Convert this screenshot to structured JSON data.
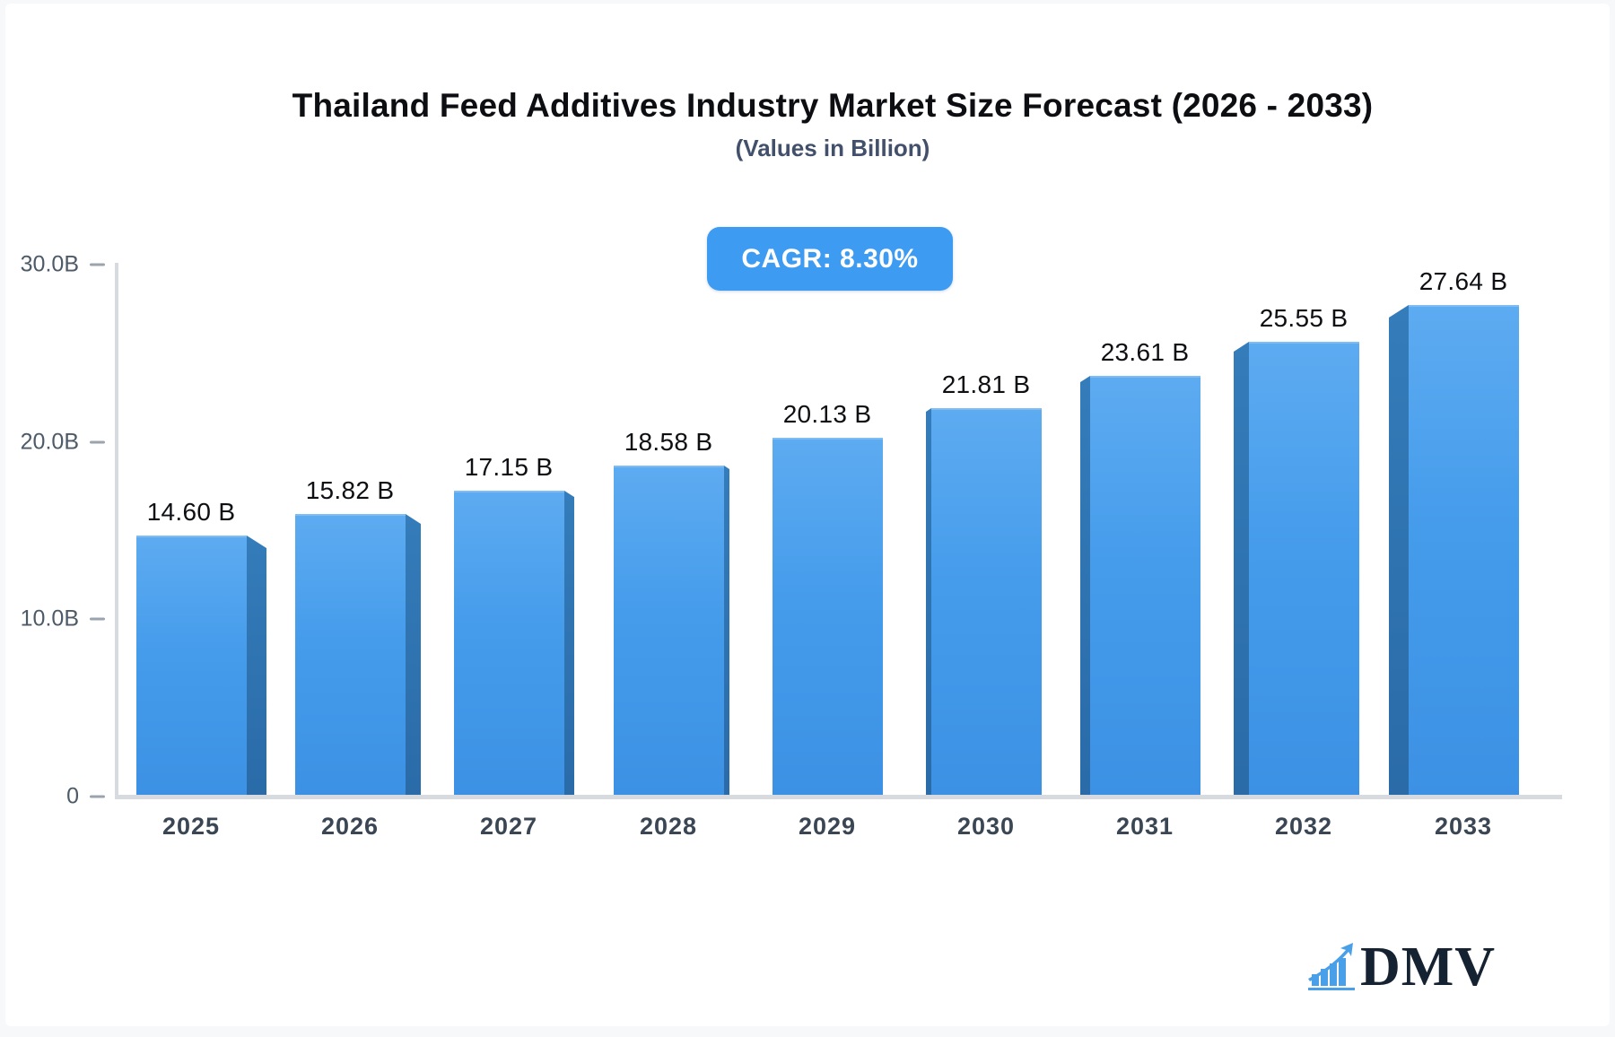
{
  "header": {
    "title": "Thailand Feed Additives Industry Market Size Forecast (2026 - 2033)",
    "subtitle": "(Values in Billion)",
    "cagr_label": "CAGR: 8.30%"
  },
  "chart_data": {
    "type": "bar",
    "style": "3d-perspective-bars",
    "categories": [
      "2025",
      "2026",
      "2027",
      "2028",
      "2029",
      "2030",
      "2031",
      "2032",
      "2033"
    ],
    "values": [
      14.6,
      15.82,
      17.15,
      18.58,
      20.13,
      21.81,
      23.61,
      25.55,
      27.64
    ],
    "value_labels": [
      "14.60 B",
      "15.82 B",
      "17.15 B",
      "18.58 B",
      "20.13 B",
      "21.81 B",
      "23.61 B",
      "25.55 B",
      "27.64 B"
    ],
    "units": "Billion",
    "ylim": [
      0,
      30
    ],
    "y_axis": {
      "ticks": [
        {
          "label": "30.0B",
          "value": 30
        },
        {
          "label": "20.0B",
          "value": 20
        },
        {
          "label": "10.0B",
          "value": 10
        },
        {
          "label": "0",
          "value": 0
        }
      ]
    },
    "grid": false,
    "legend": "none"
  },
  "logo": {
    "text": "DMV",
    "icon": "rising-bar-chart-with-arrow"
  },
  "colors": {
    "accent": "#3d9bf2",
    "bar_face_top": "#5dabf1",
    "bar_face_mid": "#459ceb",
    "bar_face_bottom": "#3c91e4",
    "bar_top_highlight": "#7fbcf4",
    "bar_side_top": "#347cba",
    "bar_side_bottom": "#2a6ba8",
    "axis_line": "#d7dade",
    "tick_mark": "#9aa3ae",
    "y_label": "#4d5a68",
    "x_label": "#3a4653",
    "value_label": "#0d0f12",
    "title": "#0c0e11",
    "subtitle": "#42506b",
    "logo_navy": "#152232",
    "logo_blue": "#4aa0e8",
    "page_bg": "#f7f8fa"
  }
}
